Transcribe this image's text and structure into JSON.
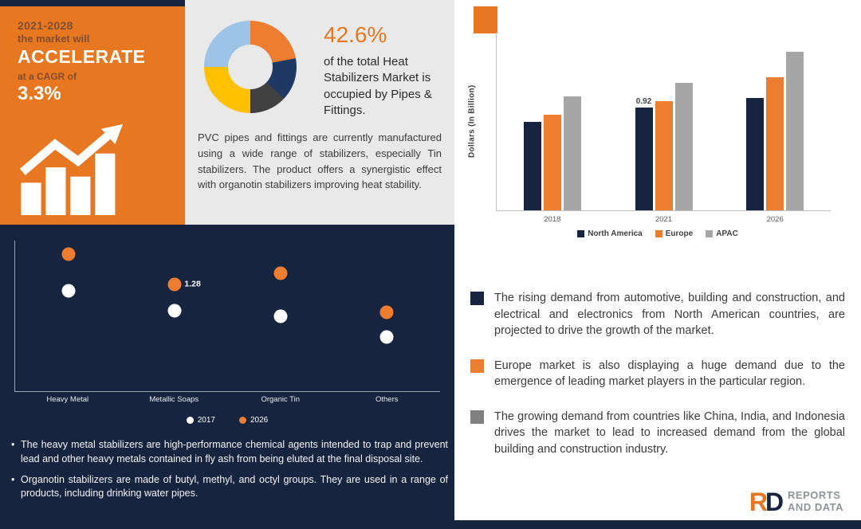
{
  "colors": {
    "navy": "#16243F",
    "orange": "#E87722",
    "chart_orange": "#ED7D31",
    "apac_gray": "#A6A6A6",
    "panel_gray": "#E9E9E9"
  },
  "promo": {
    "period": "2021-2028",
    "line1": "the market will",
    "highlight": "ACCELERATE",
    "line2": "at a CAGR of",
    "cagr": "3.3%"
  },
  "stat": {
    "value": "42.6%",
    "caption": "of the total Heat Stabilizers Market is occupied by Pipes & Fittings.",
    "paragraph": "PVC pipes and fittings are currently manufactured using a wide range of stabilizers, especially Tin stabilizers. The product offers a synergistic effect with organotin stabilizers improving heat stability."
  },
  "chart_data": [
    {
      "type": "bar",
      "title": "",
      "xlabel": "",
      "ylabel": "Dollars (In Billion)",
      "categories": [
        "2018",
        "2021",
        "2026"
      ],
      "series": [
        {
          "name": "North America",
          "color": "#16243F",
          "values": [
            0.79,
            0.92,
            1.01
          ]
        },
        {
          "name": "Europe",
          "color": "#ED7D31",
          "values": [
            0.86,
            0.98,
            1.19
          ]
        },
        {
          "name": "APAC",
          "color": "#A6A6A6",
          "values": [
            1.02,
            1.14,
            1.42
          ]
        }
      ],
      "data_labels": [
        {
          "series": "North America",
          "category": "2021",
          "text": "0.92"
        }
      ],
      "ylim": [
        0,
        1.6
      ],
      "grid": false,
      "legend_position": "bottom"
    },
    {
      "type": "scatter",
      "title": "",
      "categories": [
        "Heavy Metal",
        "Metallic Soaps",
        "Organic Tin",
        "Others"
      ],
      "series": [
        {
          "name": "2017",
          "color": "#FFFFFF",
          "values": [
            1.2,
            0.96,
            0.9,
            0.65
          ]
        },
        {
          "name": "2026",
          "color": "#ED7D31",
          "values": [
            1.64,
            1.28,
            1.41,
            0.94
          ]
        }
      ],
      "data_labels": [
        {
          "series": "2026",
          "category": "Metallic Soaps",
          "text": "1.28"
        }
      ],
      "ylim": [
        0,
        1.8
      ],
      "grid": false,
      "legend_position": "bottom"
    },
    {
      "type": "pie",
      "donut": true,
      "highlight_label": "42.6%",
      "segments": [
        {
          "color": "#ED7D31",
          "value": 22
        },
        {
          "color": "#1F3864",
          "value": 15
        },
        {
          "color": "#404040",
          "value": 13
        },
        {
          "color": "#FFC000",
          "value": 25
        },
        {
          "color": "#9DC3E6",
          "value": 25
        }
      ]
    }
  ],
  "left_notes": [
    "The heavy metal stabilizers are high-performance chemical agents intended to trap and prevent lead and other heavy metals contained in fly ash from being eluted at the final disposal site.",
    "Organotin stabilizers are made of butyl, methyl, and octyl groups. They are used in a range of products, including drinking water pipes."
  ],
  "right_bullets": [
    {
      "color": "#16243F",
      "text": "The rising demand from automotive, building and construction, and electrical and electronics from North American countries, are projected to drive the growth of the market."
    },
    {
      "color": "#ED7D31",
      "text": "Europe market is also displaying a huge demand due to the emergence of leading market players in the particular region."
    },
    {
      "color": "#808080",
      "text": "The growing demand from countries like China, India, and Indonesia drives the market to lead to increased demand from the global building and construction industry."
    }
  ],
  "logo": {
    "mark_r": "R",
    "mark_d": "D",
    "line1": "REPORTS",
    "line2": "AND DATA"
  }
}
